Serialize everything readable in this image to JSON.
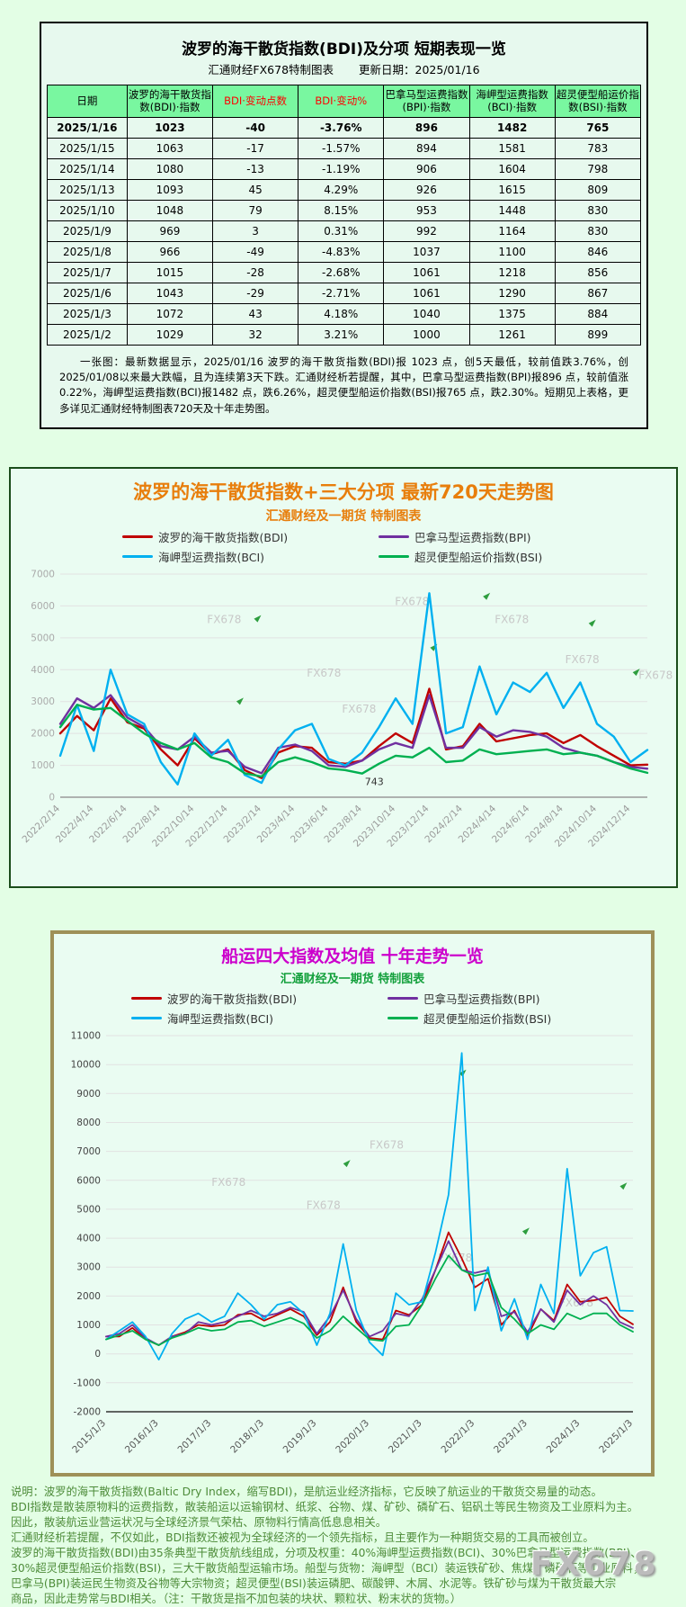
{
  "table_block": {
    "title": "波罗的海干散货指数(BDI)及分项 短期表现一览",
    "source": "汇通财经FX678特制图表",
    "update": "更新日期：2025/01/16",
    "headers": [
      "日期",
      "波罗的海干散货指数(BDI)·指数",
      "BDI·变动点数",
      "BDI·变动%",
      "巴拿马型运费指数(BPI)·指数",
      "海岬型运费指数(BCI)·指数",
      "超灵便型船运价指数(BSI)·指数"
    ],
    "header_red": [
      2,
      3
    ],
    "rows": [
      [
        "2025/1/16",
        "1023",
        "-40",
        "-3.76%",
        "896",
        "1482",
        "765"
      ],
      [
        "2025/1/15",
        "1063",
        "-17",
        "-1.57%",
        "894",
        "1581",
        "783"
      ],
      [
        "2025/1/14",
        "1080",
        "-13",
        "-1.19%",
        "906",
        "1604",
        "798"
      ],
      [
        "2025/1/13",
        "1093",
        "45",
        "4.29%",
        "926",
        "1615",
        "809"
      ],
      [
        "2025/1/10",
        "1048",
        "79",
        "8.15%",
        "953",
        "1448",
        "830"
      ],
      [
        "2025/1/9",
        "969",
        "3",
        "0.31%",
        "992",
        "1164",
        "830"
      ],
      [
        "2025/1/8",
        "966",
        "-49",
        "-4.83%",
        "1037",
        "1100",
        "846"
      ],
      [
        "2025/1/7",
        "1015",
        "-28",
        "-2.68%",
        "1061",
        "1218",
        "856"
      ],
      [
        "2025/1/6",
        "1043",
        "-29",
        "-2.71%",
        "1061",
        "1290",
        "867"
      ],
      [
        "2025/1/3",
        "1072",
        "43",
        "4.18%",
        "1040",
        "1375",
        "884"
      ],
      [
        "2025/1/2",
        "1029",
        "32",
        "3.21%",
        "1000",
        "1261",
        "899"
      ]
    ],
    "note": "一张图：最新数据显示，2025/01/16 波罗的海干散货指数(BDI)报 1023 点，创5天最低，较前值跌3.76%，创2025/01/08以来最大跌幅，且为连续第3天下跌。汇通财经析若提醒，其中，巴拿马型运费指数(BPI)报896 点，较前值涨0.22%，海岬型运费指数(BCI)报1482 点，跌6.26%，超灵便型船运价指数(BSI)报765 点，跌2.30%。短期见上表格，更多详见汇通财经特制图表720天及十年走势图。"
  },
  "chart720": {
    "title": "波罗的海干散货指数+三大分项  最新720天走势图",
    "subtitle": "汇通财经及一期货 特制图表"
  },
  "chart10y": {
    "title": "船运四大指数及均值 十年走势一览",
    "subtitle": "汇通财经及一期货 特制图表"
  },
  "legend": [
    {
      "id": "BDI",
      "name": "波罗的海干散货指数(BDI)",
      "color": "#c00000"
    },
    {
      "id": "BPI",
      "name": "巴拿马型运费指数(BPI)",
      "color": "#7030a0"
    },
    {
      "id": "BCI",
      "name": "海岬型运费指数(BCI)",
      "color": "#00b0f0"
    },
    {
      "id": "BSI",
      "name": "超灵便型船运价指数(BSI)",
      "color": "#00b050"
    }
  ],
  "chart_data": [
    {
      "id": "chart720",
      "type": "line",
      "title": "波罗的海干散货指数+三大分项  最新720天走势图",
      "subtitle": "汇通财经及一期货 特制图表",
      "legend_position": "top",
      "grid": true,
      "ylim": [
        0,
        7000
      ],
      "ytick_step": 1000,
      "x_labels": [
        "2022/2/14",
        "2022/4/14",
        "2022/6/14",
        "2022/8/14",
        "2022/10/14",
        "2022/12/14",
        "2023/2/14",
        "2023/4/14",
        "2023/6/14",
        "2023/8/14",
        "2023/10/14",
        "2023/12/14",
        "2024/2/14",
        "2024/4/14",
        "2024/6/14",
        "2024/8/14",
        "2024/10/14",
        "2024/12/14"
      ],
      "series": [
        {
          "id": "BDI",
          "name": "波罗的海干散货指数(BDI)",
          "color": "#c00000",
          "values": [
            2000,
            2550,
            2100,
            3100,
            2350,
            2150,
            1500,
            1000,
            1850,
            1350,
            1500,
            850,
            600,
            1400,
            1600,
            1550,
            1100,
            1050,
            1150,
            1600,
            2000,
            1700,
            3400,
            1500,
            1600,
            2300,
            1750,
            1850,
            1950,
            2000,
            1700,
            1950,
            1600,
            1300,
            1000,
            1023
          ]
        },
        {
          "id": "BPI",
          "name": "巴拿马型运费指数(BPI)",
          "color": "#7030a0",
          "values": [
            2300,
            3100,
            2800,
            3200,
            2500,
            2200,
            1600,
            1500,
            1900,
            1400,
            1450,
            950,
            750,
            1550,
            1650,
            1450,
            1000,
            950,
            1150,
            1500,
            1700,
            1550,
            3200,
            1550,
            1550,
            2200,
            1900,
            2100,
            2050,
            1900,
            1550,
            1400,
            1300,
            1100,
            950,
            896
          ]
        },
        {
          "id": "BCI",
          "name": "海岬型运费指数(BCI)",
          "color": "#00b0f0",
          "values": [
            1300,
            2900,
            1450,
            4000,
            2600,
            2300,
            1100,
            400,
            2000,
            1300,
            1800,
            700,
            450,
            1500,
            2100,
            2300,
            1200,
            1000,
            1400,
            2200,
            3100,
            2300,
            6400,
            2000,
            2200,
            4100,
            2600,
            3600,
            3300,
            3900,
            2800,
            3600,
            2300,
            1900,
            1100,
            1482
          ]
        },
        {
          "id": "BSI",
          "name": "超灵便型船运价指数(BSI)",
          "color": "#00b050",
          "values": [
            2200,
            2900,
            2750,
            2800,
            2400,
            2000,
            1700,
            1500,
            1700,
            1250,
            1100,
            750,
            650,
            1100,
            1250,
            1100,
            900,
            850,
            743,
            1050,
            1300,
            1250,
            1550,
            1100,
            1150,
            1500,
            1350,
            1400,
            1450,
            1500,
            1350,
            1400,
            1300,
            1100,
            900,
            765
          ]
        }
      ],
      "annotation": {
        "text": "743",
        "series": "BSI",
        "index": 18
      },
      "watermark": "FX678"
    },
    {
      "id": "chart10y",
      "type": "line",
      "title": "船运四大指数及均值 十年走势一览",
      "subtitle": "汇通财经及一期货 特制图表",
      "legend_position": "top",
      "grid": true,
      "ylim": [
        -2000,
        11000
      ],
      "ytick_step": 1000,
      "x_labels": [
        "2015/1/3",
        "2016/1/3",
        "2017/1/3",
        "2018/1/3",
        "2019/1/3",
        "2020/1/3",
        "2021/1/3",
        "2022/1/3",
        "2023/1/3",
        "2024/1/3",
        "2025/1/3"
      ],
      "series": [
        {
          "id": "BDI",
          "name": "波罗的海干散货指数(BDI)",
          "color": "#c00000",
          "values": [
            600,
            600,
            900,
            500,
            300,
            600,
            750,
            1000,
            950,
            1000,
            1350,
            1400,
            1150,
            1350,
            1550,
            1300,
            650,
            1100,
            2300,
            1100,
            550,
            500,
            1500,
            1350,
            1700,
            2900,
            4200,
            3300,
            2300,
            2600,
            1000,
            1500,
            600,
            1550,
            1150,
            2400,
            1800,
            1850,
            1950,
            1300,
            1023
          ]
        },
        {
          "id": "BPI",
          "name": "巴拿马型运费指数(BPI)",
          "color": "#7030a0",
          "values": [
            600,
            700,
            1000,
            550,
            300,
            600,
            700,
            1100,
            1000,
            1100,
            1300,
            1500,
            1300,
            1400,
            1600,
            1450,
            700,
            1300,
            2200,
            1200,
            600,
            800,
            1400,
            1300,
            1900,
            2900,
            3900,
            2900,
            2800,
            2900,
            1300,
            1450,
            750,
            1550,
            1100,
            2200,
            1700,
            2000,
            1700,
            1100,
            896
          ]
        },
        {
          "id": "BCI",
          "name": "海岬型运费指数(BCI)",
          "color": "#00b0f0",
          "values": [
            500,
            800,
            1100,
            600,
            -200,
            700,
            1200,
            1400,
            1100,
            1300,
            2100,
            1700,
            1200,
            1700,
            1800,
            1400,
            300,
            1400,
            3800,
            1500,
            400,
            -50,
            2100,
            1700,
            1800,
            3500,
            5500,
            10400,
            1500,
            3000,
            800,
            1900,
            500,
            2400,
            1400,
            6400,
            2700,
            3500,
            3700,
            1500,
            1482
          ]
        },
        {
          "id": "BSI",
          "name": "超灵便型船运价指数(BSI)",
          "color": "#00b050",
          "values": [
            500,
            650,
            800,
            500,
            300,
            550,
            700,
            900,
            800,
            850,
            1100,
            1150,
            950,
            1100,
            1250,
            1050,
            550,
            800,
            1300,
            900,
            500,
            450,
            950,
            1000,
            1700,
            2600,
            3400,
            2900,
            2700,
            2800,
            1600,
            1200,
            700,
            1000,
            850,
            1400,
            1200,
            1400,
            1400,
            1000,
            765
          ]
        }
      ],
      "watermark": "FX678"
    }
  ],
  "footer": {
    "lines": [
      "说明：波罗的海干散货指数(Baltic Dry Index，缩写BDI)，是航运业经济指标，它反映了航运业的干散货交易量的动态。",
      "BDI指数是散装原物料的运费指数，散装船运以运输钢材、纸浆、谷物、煤、矿砂、磷矿石、铝矾土等民生物资及工业原料为主。",
      "因此，散装航运业营运状况与全球经济景气荣枯、原物料行情高低息息相关。",
      "汇通财经析若提醒，不仅如此，BDI指数还被视为全球经济的一个领先指标，且主要作为一种期货交易的工具而被创立。",
      "波罗的海干散货指数(BDI)由35条典型干散货航线组成，分项及权重：40%海岬型运费指数(BCI)、30%巴拿马型运费指数(BPI)、",
      "30%超灵便型船运价指数(BSI)，三大干散货船型运输市场。船型与货物：海岬型（BCI）装运铁矿砂、焦煤、磷矿石等工业原料；",
      "巴拿马(BPI)装运民生物资及谷物等大宗物资；超灵便型(BSI)装运磷肥、碳酸钾、木屑、水泥等。铁矿砂与煤为干散货最大宗",
      "商品，因此走势常与BDI相关。（注：干散货是指不加包装的块状、颗粒状、粉末状的货物。）"
    ],
    "watermark": "FX678"
  }
}
